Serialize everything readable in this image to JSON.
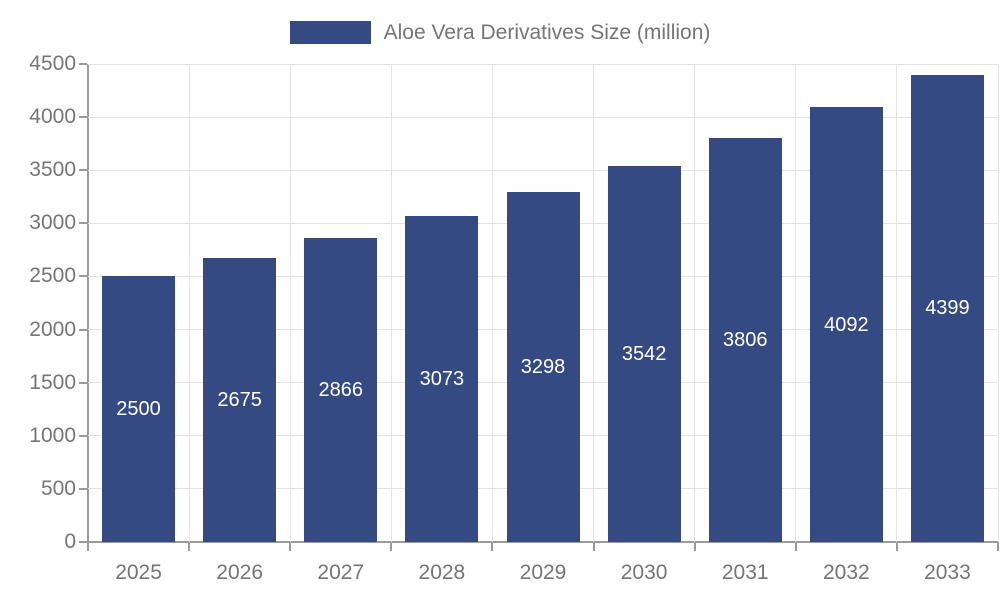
{
  "legend": {
    "items": [
      {
        "label": "Aloe Vera Derivatives Size (million)",
        "color": "#354983"
      }
    ]
  },
  "chart_data": {
    "type": "bar",
    "title": "Aloe Vera Derivatives Size (million)",
    "categories": [
      "2025",
      "2026",
      "2027",
      "2028",
      "2029",
      "2030",
      "2031",
      "2032",
      "2033"
    ],
    "values": [
      2500,
      2675,
      2866,
      3073,
      3298,
      3542,
      3806,
      4092,
      4399
    ],
    "series_name": "Aloe Vera Derivatives Size (million)",
    "xlabel": "",
    "ylabel": "",
    "ylim": [
      0,
      4500
    ],
    "ytick_step": 500,
    "yticks": [
      0,
      500,
      1000,
      1500,
      2000,
      2500,
      3000,
      3500,
      4000,
      4500
    ],
    "grid": true,
    "legend_position": "top",
    "value_labels": "inside-center",
    "colors": {
      "bar": "#354983",
      "bar_label": "#ffffff",
      "axis_line": "#9b9b9b",
      "tick": "#9b9b9b",
      "grid_line": "#e3e3e3",
      "axis_text": "#757575",
      "legend_text": "#757575",
      "background": "#ffffff"
    }
  }
}
